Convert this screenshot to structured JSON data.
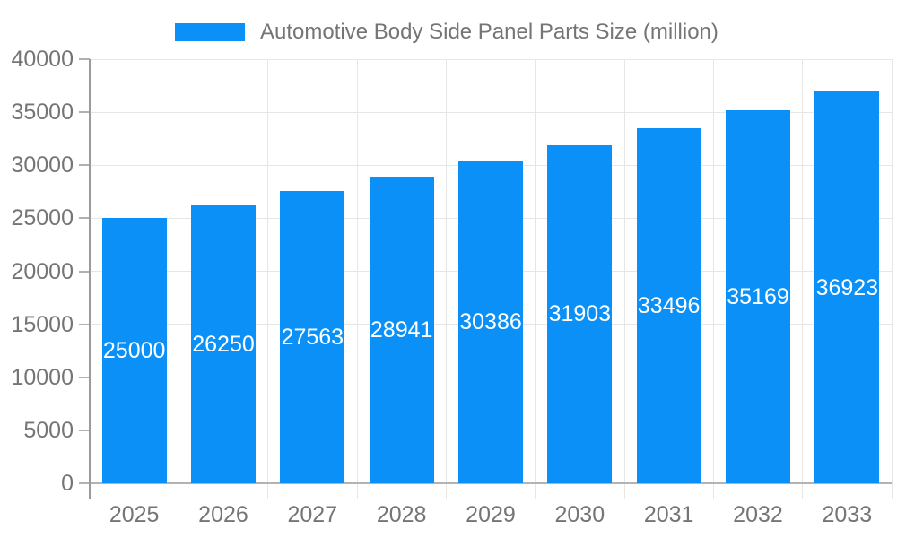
{
  "legend": {
    "label": "Automotive Body Side Panel Parts Size (million)"
  },
  "chart_data": {
    "type": "bar",
    "title": "Automotive Body Side Panel Parts Size (million)",
    "categories": [
      "2025",
      "2026",
      "2027",
      "2028",
      "2029",
      "2030",
      "2031",
      "2032",
      "2033"
    ],
    "values": [
      25000,
      26250,
      27563,
      28941,
      30386,
      31903,
      33496,
      35169,
      36923
    ],
    "xlabel": "",
    "ylabel": "",
    "ylim": [
      0,
      40000
    ],
    "yticks": [
      0,
      5000,
      10000,
      15000,
      20000,
      25000,
      30000,
      35000,
      40000
    ],
    "grid": true,
    "legend_position": "top",
    "value_labels": "inside-center-white"
  },
  "colors": {
    "bar": "#0b90f8",
    "axis_text": "#757575",
    "grid": "#e6e6e6",
    "axis_line": "#9a9a9a",
    "baseline": "#b3b3b3",
    "tick": "#b0b0b0",
    "value_label": "#ffffff",
    "background": "#ffffff"
  }
}
